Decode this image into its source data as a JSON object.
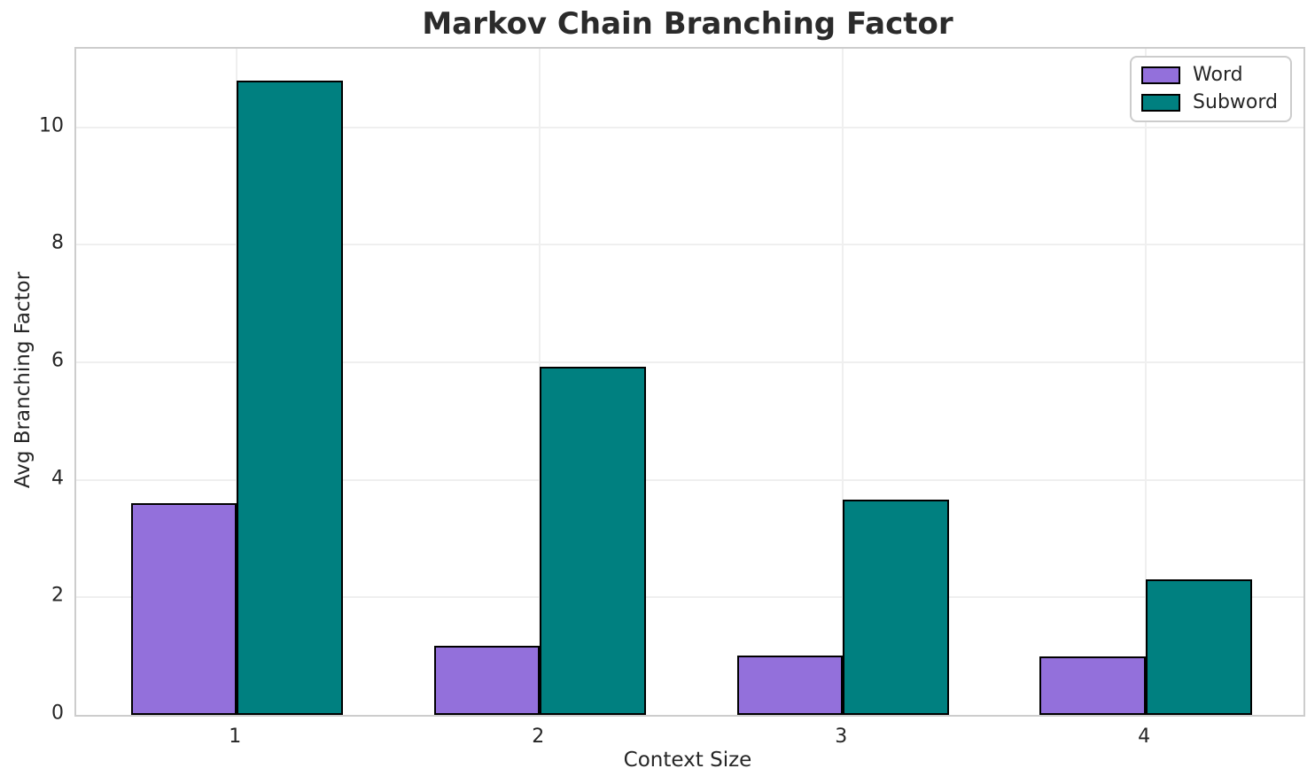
{
  "title": "Markov Chain Branching Factor",
  "chart_data": {
    "type": "bar",
    "categories": [
      "1",
      "2",
      "3",
      "4"
    ],
    "series": [
      {
        "name": "Word",
        "color": "#9370DB",
        "values": [
          3.6,
          1.18,
          1.01,
          1.0
        ]
      },
      {
        "name": "Subword",
        "color": "#008080",
        "values": [
          10.8,
          5.93,
          3.67,
          2.31
        ]
      }
    ],
    "xlabel": "Context Size",
    "ylabel": "Avg Branching Factor",
    "yticks": [
      0,
      2,
      4,
      6,
      8,
      10
    ],
    "ylim": [
      0,
      11.34
    ],
    "grid": "on",
    "legend_position": "upper right",
    "bar_edge_color": "#000000",
    "grid_color": "#efefef",
    "spine_color": "#cdcdcd",
    "text_color": "#262626"
  },
  "legend": {
    "items": [
      {
        "label": "Word",
        "color": "#9370DB"
      },
      {
        "label": "Subword",
        "color": "#008080"
      }
    ]
  }
}
